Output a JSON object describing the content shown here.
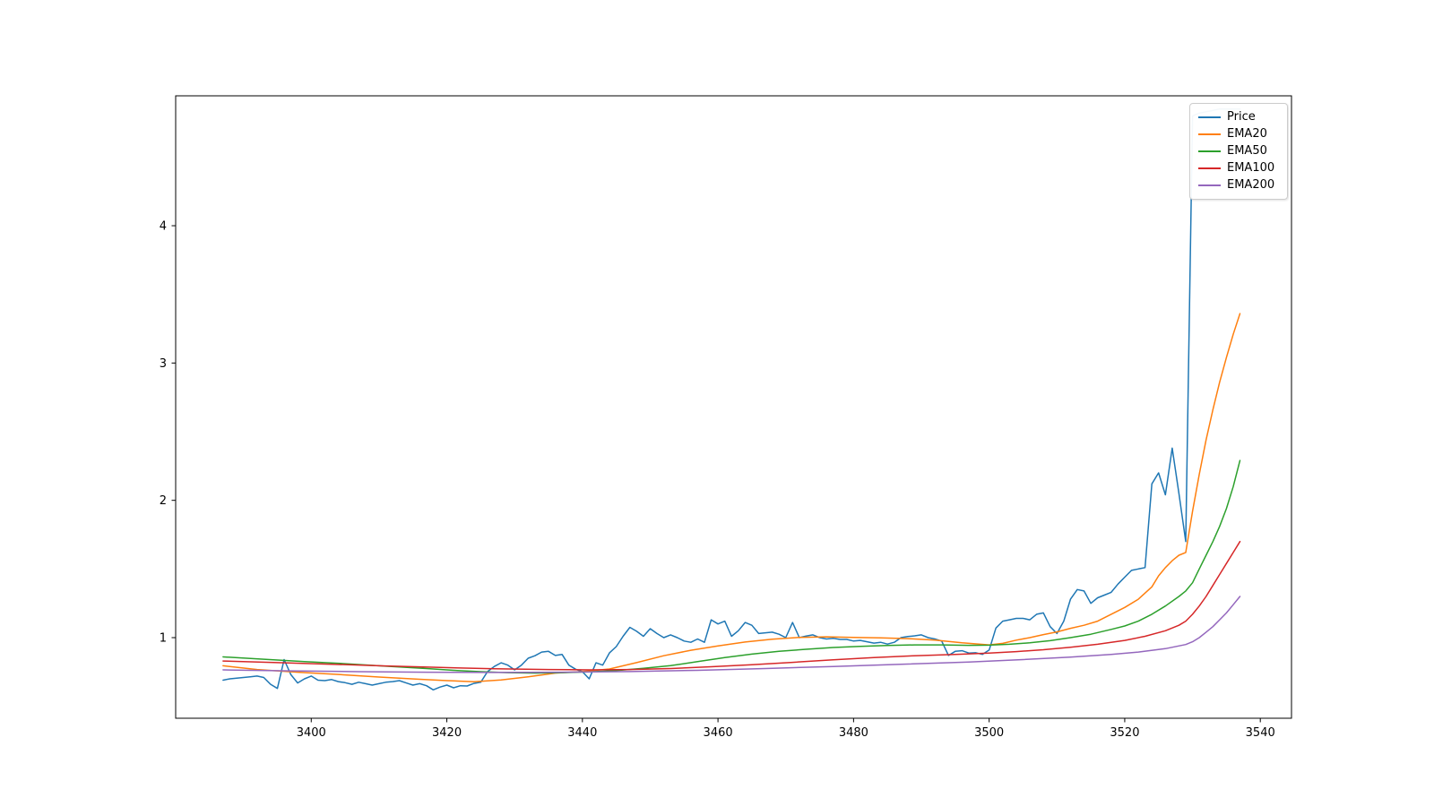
{
  "chart_data": {
    "type": "line",
    "title": "",
    "xlabel": "",
    "ylabel": "",
    "grid": false,
    "background_color": "#ffffff",
    "spine_color": "#000000",
    "xlim": [
      3380.0,
      3544.6
    ],
    "ylim": [
      0.413,
      4.946
    ],
    "x_ticks": [
      3400,
      3420,
      3440,
      3460,
      3480,
      3500,
      3520,
      3540
    ],
    "y_ticks": [
      1,
      2,
      3,
      4
    ],
    "legend": {
      "position": "upper right",
      "entries": [
        "Price",
        "EMA20",
        "EMA50",
        "EMA100",
        "EMA200"
      ]
    },
    "series": [
      {
        "name": "Price",
        "color": "#1f77b4",
        "line_width": 1.5,
        "x_start": 3387,
        "x_step": 1,
        "values": [
          0.69,
          0.7,
          0.705,
          0.71,
          0.715,
          0.72,
          0.71,
          0.66,
          0.63,
          0.84,
          0.73,
          0.67,
          0.7,
          0.72,
          0.69,
          0.687,
          0.695,
          0.68,
          0.672,
          0.66,
          0.675,
          0.665,
          0.654,
          0.665,
          0.675,
          0.68,
          0.687,
          0.67,
          0.654,
          0.665,
          0.65,
          0.62,
          0.64,
          0.654,
          0.635,
          0.65,
          0.648,
          0.667,
          0.675,
          0.752,
          0.79,
          0.817,
          0.8,
          0.765,
          0.8,
          0.85,
          0.868,
          0.895,
          0.9,
          0.87,
          0.878,
          0.8,
          0.77,
          0.752,
          0.7,
          0.817,
          0.8,
          0.89,
          0.935,
          1.01,
          1.075,
          1.046,
          1.01,
          1.065,
          1.03,
          1.0,
          1.02,
          1.0,
          0.975,
          0.966,
          0.99,
          0.966,
          1.13,
          1.1,
          1.12,
          1.01,
          1.05,
          1.11,
          1.09,
          1.03,
          1.035,
          1.04,
          1.025,
          1.0,
          1.11,
          1.0,
          1.012,
          1.02,
          1.0,
          0.99,
          0.995,
          0.987,
          0.987,
          0.975,
          0.98,
          0.97,
          0.96,
          0.966,
          0.953,
          0.966,
          1.0,
          1.008,
          1.013,
          1.02,
          1.0,
          0.99,
          0.975,
          0.87,
          0.9,
          0.905,
          0.888,
          0.89,
          0.878,
          0.91,
          1.07,
          1.12,
          1.13,
          1.14,
          1.14,
          1.13,
          1.17,
          1.18,
          1.08,
          1.03,
          1.12,
          1.28,
          1.35,
          1.34,
          1.25,
          1.29,
          1.31,
          1.33,
          1.39,
          1.44,
          1.49,
          1.5,
          1.51,
          2.12,
          2.2,
          2.04,
          2.38,
          2.05,
          1.7,
          4.8,
          4.82,
          4.83,
          4.84,
          4.85,
          4.85,
          4.85,
          4.85
        ]
      },
      {
        "name": "EMA20",
        "color": "#ff7f0e",
        "line_width": 1.5,
        "points": [
          [
            3387,
            0.795
          ],
          [
            3392,
            0.768
          ],
          [
            3398,
            0.748
          ],
          [
            3404,
            0.732
          ],
          [
            3410,
            0.713
          ],
          [
            3416,
            0.697
          ],
          [
            3420,
            0.687
          ],
          [
            3424,
            0.679
          ],
          [
            3428,
            0.692
          ],
          [
            3432,
            0.715
          ],
          [
            3436,
            0.742
          ],
          [
            3440,
            0.753
          ],
          [
            3444,
            0.772
          ],
          [
            3448,
            0.818
          ],
          [
            3452,
            0.868
          ],
          [
            3456,
            0.908
          ],
          [
            3460,
            0.94
          ],
          [
            3464,
            0.968
          ],
          [
            3468,
            0.988
          ],
          [
            3472,
            1.002
          ],
          [
            3476,
            1.006
          ],
          [
            3480,
            1.002
          ],
          [
            3484,
            0.998
          ],
          [
            3488,
            0.993
          ],
          [
            3492,
            0.982
          ],
          [
            3496,
            0.962
          ],
          [
            3500,
            0.947
          ],
          [
            3502,
            0.958
          ],
          [
            3504,
            0.982
          ],
          [
            3506,
            1.0
          ],
          [
            3508,
            1.022
          ],
          [
            3510,
            1.042
          ],
          [
            3512,
            1.068
          ],
          [
            3514,
            1.09
          ],
          [
            3516,
            1.12
          ],
          [
            3518,
            1.17
          ],
          [
            3520,
            1.22
          ],
          [
            3522,
            1.28
          ],
          [
            3524,
            1.37
          ],
          [
            3525,
            1.45
          ],
          [
            3526,
            1.51
          ],
          [
            3527,
            1.56
          ],
          [
            3528,
            1.6
          ],
          [
            3529,
            1.62
          ],
          [
            3530,
            1.92
          ],
          [
            3531,
            2.19
          ],
          [
            3532,
            2.44
          ],
          [
            3533,
            2.66
          ],
          [
            3534,
            2.86
          ],
          [
            3535,
            3.04
          ],
          [
            3536,
            3.21
          ],
          [
            3537,
            3.36
          ]
        ]
      },
      {
        "name": "EMA50",
        "color": "#2ca02c",
        "line_width": 1.5,
        "points": [
          [
            3387,
            0.86
          ],
          [
            3393,
            0.843
          ],
          [
            3399,
            0.826
          ],
          [
            3405,
            0.81
          ],
          [
            3411,
            0.792
          ],
          [
            3417,
            0.775
          ],
          [
            3421,
            0.762
          ],
          [
            3425,
            0.752
          ],
          [
            3429,
            0.745
          ],
          [
            3433,
            0.742
          ],
          [
            3437,
            0.745
          ],
          [
            3441,
            0.751
          ],
          [
            3445,
            0.76
          ],
          [
            3449,
            0.776
          ],
          [
            3453,
            0.796
          ],
          [
            3457,
            0.825
          ],
          [
            3461,
            0.855
          ],
          [
            3465,
            0.88
          ],
          [
            3469,
            0.9
          ],
          [
            3473,
            0.915
          ],
          [
            3477,
            0.928
          ],
          [
            3481,
            0.937
          ],
          [
            3485,
            0.943
          ],
          [
            3489,
            0.947
          ],
          [
            3493,
            0.947
          ],
          [
            3497,
            0.944
          ],
          [
            3500,
            0.945
          ],
          [
            3503,
            0.952
          ],
          [
            3506,
            0.962
          ],
          [
            3509,
            0.978
          ],
          [
            3512,
            1.0
          ],
          [
            3515,
            1.025
          ],
          [
            3518,
            1.06
          ],
          [
            3520,
            1.085
          ],
          [
            3522,
            1.12
          ],
          [
            3524,
            1.17
          ],
          [
            3526,
            1.23
          ],
          [
            3528,
            1.3
          ],
          [
            3529,
            1.34
          ],
          [
            3530,
            1.4
          ],
          [
            3531,
            1.5
          ],
          [
            3532,
            1.6
          ],
          [
            3533,
            1.7
          ],
          [
            3534,
            1.81
          ],
          [
            3535,
            1.94
          ],
          [
            3536,
            2.1
          ],
          [
            3537,
            2.29
          ]
        ]
      },
      {
        "name": "EMA100",
        "color": "#d62728",
        "line_width": 1.5,
        "points": [
          [
            3387,
            0.83
          ],
          [
            3395,
            0.818
          ],
          [
            3403,
            0.806
          ],
          [
            3411,
            0.794
          ],
          [
            3419,
            0.783
          ],
          [
            3427,
            0.773
          ],
          [
            3435,
            0.768
          ],
          [
            3441,
            0.765
          ],
          [
            3447,
            0.768
          ],
          [
            3453,
            0.775
          ],
          [
            3459,
            0.788
          ],
          [
            3465,
            0.803
          ],
          [
            3471,
            0.82
          ],
          [
            3477,
            0.838
          ],
          [
            3483,
            0.855
          ],
          [
            3489,
            0.868
          ],
          [
            3495,
            0.878
          ],
          [
            3500,
            0.887
          ],
          [
            3504,
            0.898
          ],
          [
            3508,
            0.912
          ],
          [
            3512,
            0.93
          ],
          [
            3516,
            0.952
          ],
          [
            3520,
            0.98
          ],
          [
            3523,
            1.01
          ],
          [
            3526,
            1.05
          ],
          [
            3528,
            1.09
          ],
          [
            3529,
            1.12
          ],
          [
            3530,
            1.17
          ],
          [
            3531,
            1.23
          ],
          [
            3532,
            1.3
          ],
          [
            3533,
            1.38
          ],
          [
            3534,
            1.46
          ],
          [
            3535,
            1.54
          ],
          [
            3536,
            1.62
          ],
          [
            3537,
            1.7
          ]
        ]
      },
      {
        "name": "EMA200",
        "color": "#9467bd",
        "line_width": 1.5,
        "points": [
          [
            3387,
            0.765
          ],
          [
            3397,
            0.758
          ],
          [
            3407,
            0.752
          ],
          [
            3417,
            0.748
          ],
          [
            3427,
            0.746
          ],
          [
            3437,
            0.748
          ],
          [
            3447,
            0.753
          ],
          [
            3457,
            0.762
          ],
          [
            3467,
            0.775
          ],
          [
            3477,
            0.79
          ],
          [
            3487,
            0.806
          ],
          [
            3497,
            0.822
          ],
          [
            3505,
            0.84
          ],
          [
            3512,
            0.858
          ],
          [
            3518,
            0.878
          ],
          [
            3522,
            0.895
          ],
          [
            3526,
            0.92
          ],
          [
            3529,
            0.95
          ],
          [
            3530,
            0.97
          ],
          [
            3531,
            1.0
          ],
          [
            3532,
            1.04
          ],
          [
            3533,
            1.08
          ],
          [
            3534,
            1.13
          ],
          [
            3535,
            1.18
          ],
          [
            3536,
            1.24
          ],
          [
            3537,
            1.3
          ]
        ]
      }
    ]
  }
}
